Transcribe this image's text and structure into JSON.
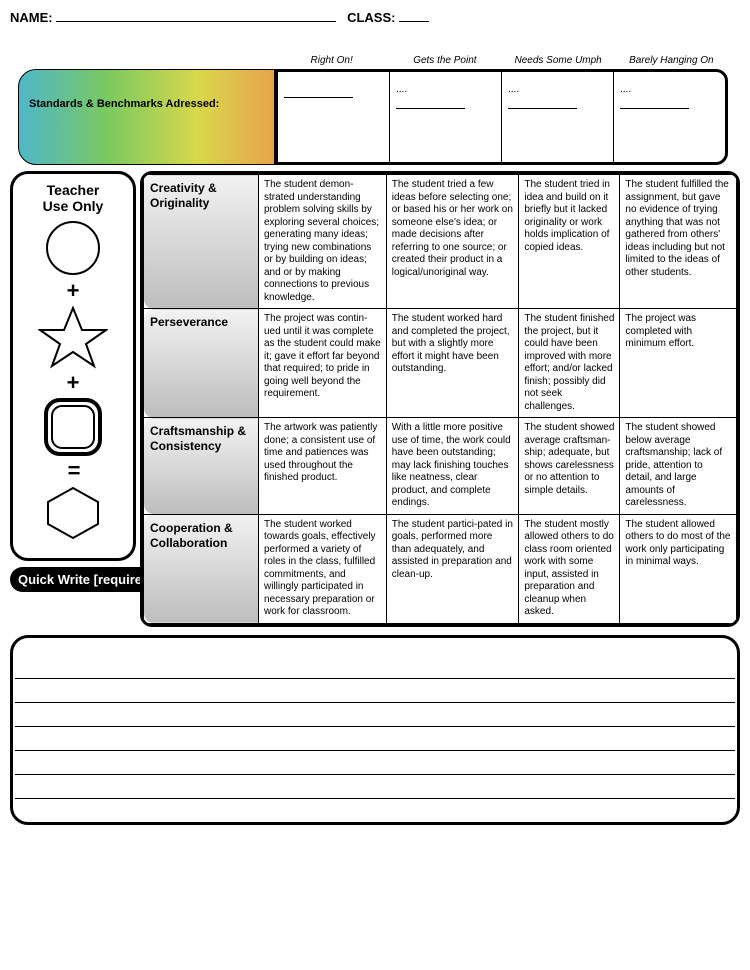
{
  "header": {
    "name_label": "NAME:",
    "class_label": "CLASS:"
  },
  "standards_label": "Standards & Benchmarks Adressed:",
  "columns": [
    "Right On!",
    "Gets the Point",
    "Needs Some Umph",
    "Barely Hanging On"
  ],
  "score_placeholders": [
    "",
    "....",
    "....",
    "...."
  ],
  "teacher": {
    "title1": "Teacher",
    "title2": "Use Only",
    "plus": "+",
    "equals": "="
  },
  "quick_write": "Quick Write [required]",
  "criteria": [
    {
      "name": "Creativity & Originality",
      "cells": [
        "The student demon-strated understanding problem solving skills by exploring several choices; generating many ideas; trying new combinations or by building on ideas; and or by making connections to previous knowledge.",
        "The student tried a few ideas before selecting one; or based his or her work on someone else's idea; or made decisions after referring to one source; or created their product in a logical/unoriginal way.",
        "The student tried in idea and build on it briefly but it lacked originality or work holds implication of copied ideas.",
        "The student fulfilled the assignment, but gave no evidence of trying anything that was not gathered from others' ideas including but not limited to the ideas of other students."
      ]
    },
    {
      "name": "Perseverance",
      "cells": [
        "The project was contin-ued until it was complete as the student could make it; gave it effort far beyond that required; to pride in going well beyond the requirement.",
        "The student worked hard and completed the project, but with a slightly more effort it might have been outstanding.",
        "The student finished the project, but it could have been improved with more effort; and/or lacked finish; possibly did not seek challenges.",
        "The project was completed with minimum effort."
      ]
    },
    {
      "name": "Craftsmanship & Consistency",
      "cells": [
        "The artwork was patiently done; a consistent use of time and patiences was used throughout the finished product.",
        "With a little more positive use of time, the work could have been outstanding; may lack finishing touches like neatness, clear product, and complete endings.",
        "The student showed average craftsman-ship; adequate, but shows carelessness or no attention to simple details.",
        "The student showed below average craftsmanship; lack of pride, attention to detail, and large amounts of carelessness."
      ]
    },
    {
      "name": "Cooperation & Collaboration",
      "cells": [
        "The student worked towards goals, effectively performed a variety of roles in the class,  fulfilled commitments, and willingly participated in necessary preparation or work for classroom.",
        "The student partici-pated in goals, performed more than adequately, and assisted in preparation and clean-up.",
        "The student mostly allowed others to do class room oriented work with some input, assisted in preparation and cleanup when asked.",
        "The student allowed others to do most of the work only participating in minimal ways."
      ]
    }
  ],
  "style": {
    "gradient": [
      "#4fb7c9",
      "#7bc95e",
      "#d8d84c",
      "#e8a34c"
    ],
    "border_radius": 18,
    "writebox_lines": 7
  }
}
